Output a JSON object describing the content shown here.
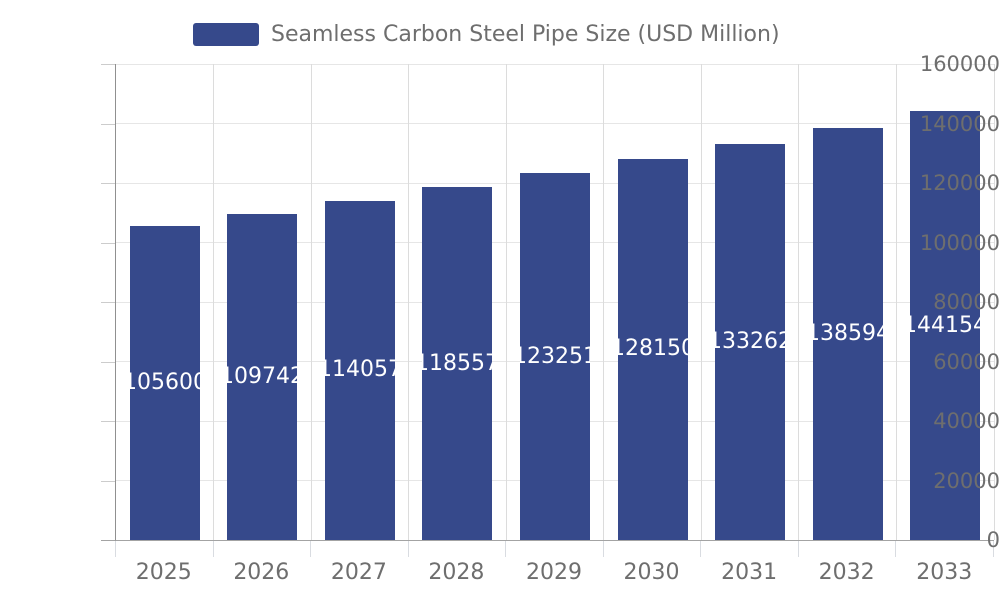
{
  "legend": {
    "label": "Seamless Carbon Steel Pipe Size (USD Million)"
  },
  "chart_data": {
    "type": "bar",
    "title": "Seamless Carbon Steel Pipe Size (USD Million)",
    "series": [
      {
        "name": "Seamless Carbon Steel Pipe Size (USD Million)",
        "values": [
          105600,
          109742,
          114057,
          118557,
          123251,
          128150,
          133262,
          138594,
          144154
        ]
      }
    ],
    "categories": [
      "2025",
      "2026",
      "2027",
      "2028",
      "2029",
      "2030",
      "2031",
      "2032",
      "2033"
    ],
    "values": [
      105600,
      109742,
      114057,
      118557,
      123251,
      128150,
      133262,
      138594,
      144154
    ],
    "xlabel": "",
    "ylabel": "",
    "ylim": [
      0,
      160000
    ],
    "yticks": [
      0,
      20000,
      40000,
      60000,
      80000,
      100000,
      120000,
      140000,
      160000
    ],
    "grid": true,
    "legend_position": "top-center",
    "bar_color": "#36498b",
    "bar_label_color": "#ffffff",
    "axis_label_color": "#6e6e6e"
  }
}
